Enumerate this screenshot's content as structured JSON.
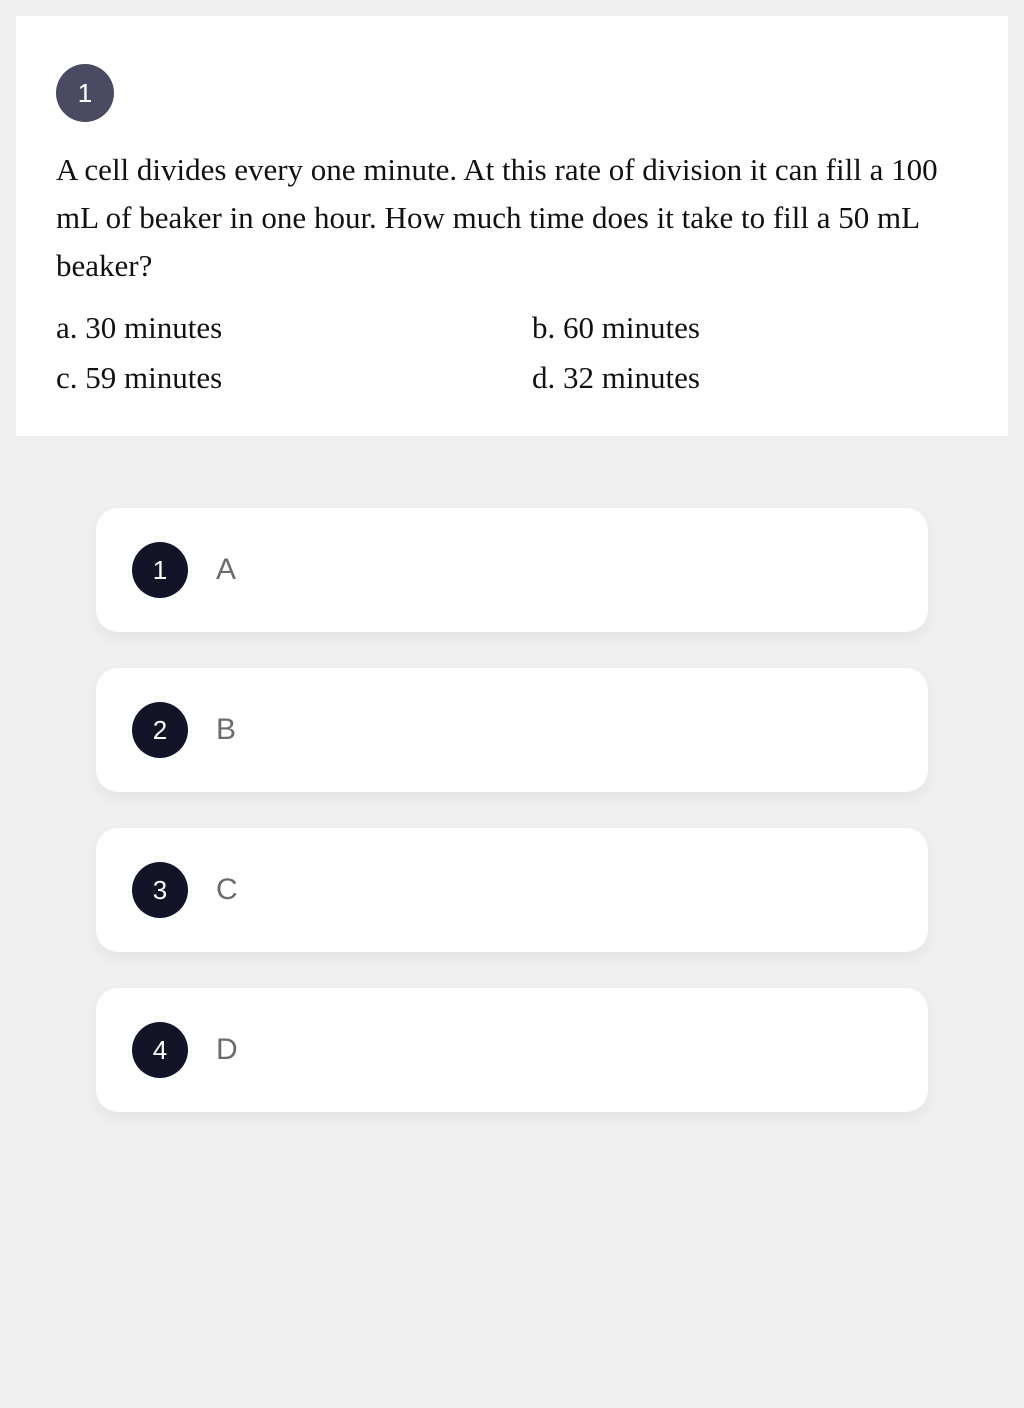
{
  "page": {
    "background_color": "#f0f0f0",
    "card_background": "#ffffff",
    "text_color": "#111111",
    "answer_label_color": "#6b6b6b",
    "question_badge_color": "#4a4a63",
    "answer_badge_color": "#131428",
    "font_family_question": "Georgia, Times New Roman, serif",
    "font_family_answer": "Arial, sans-serif",
    "question_fontsize": 31,
    "answer_fontsize": 30
  },
  "question": {
    "number": "1",
    "text": "A cell divides every one minute. At this rate of division it can fill a 100 mL of beaker  in one hour. How much time does it take to fill a 50 mL beaker?",
    "options": {
      "a": {
        "letter": "a.",
        "text": "30 minutes"
      },
      "b": {
        "letter": "b.",
        "text": "60 minutes"
      },
      "c": {
        "letter": "c.",
        "text": "59 minutes"
      },
      "d": {
        "letter": "d.",
        "text": "32 minutes"
      }
    }
  },
  "answers": [
    {
      "number": "1",
      "label": "A"
    },
    {
      "number": "2",
      "label": "B"
    },
    {
      "number": "3",
      "label": "C"
    },
    {
      "number": "4",
      "label": "D"
    }
  ]
}
